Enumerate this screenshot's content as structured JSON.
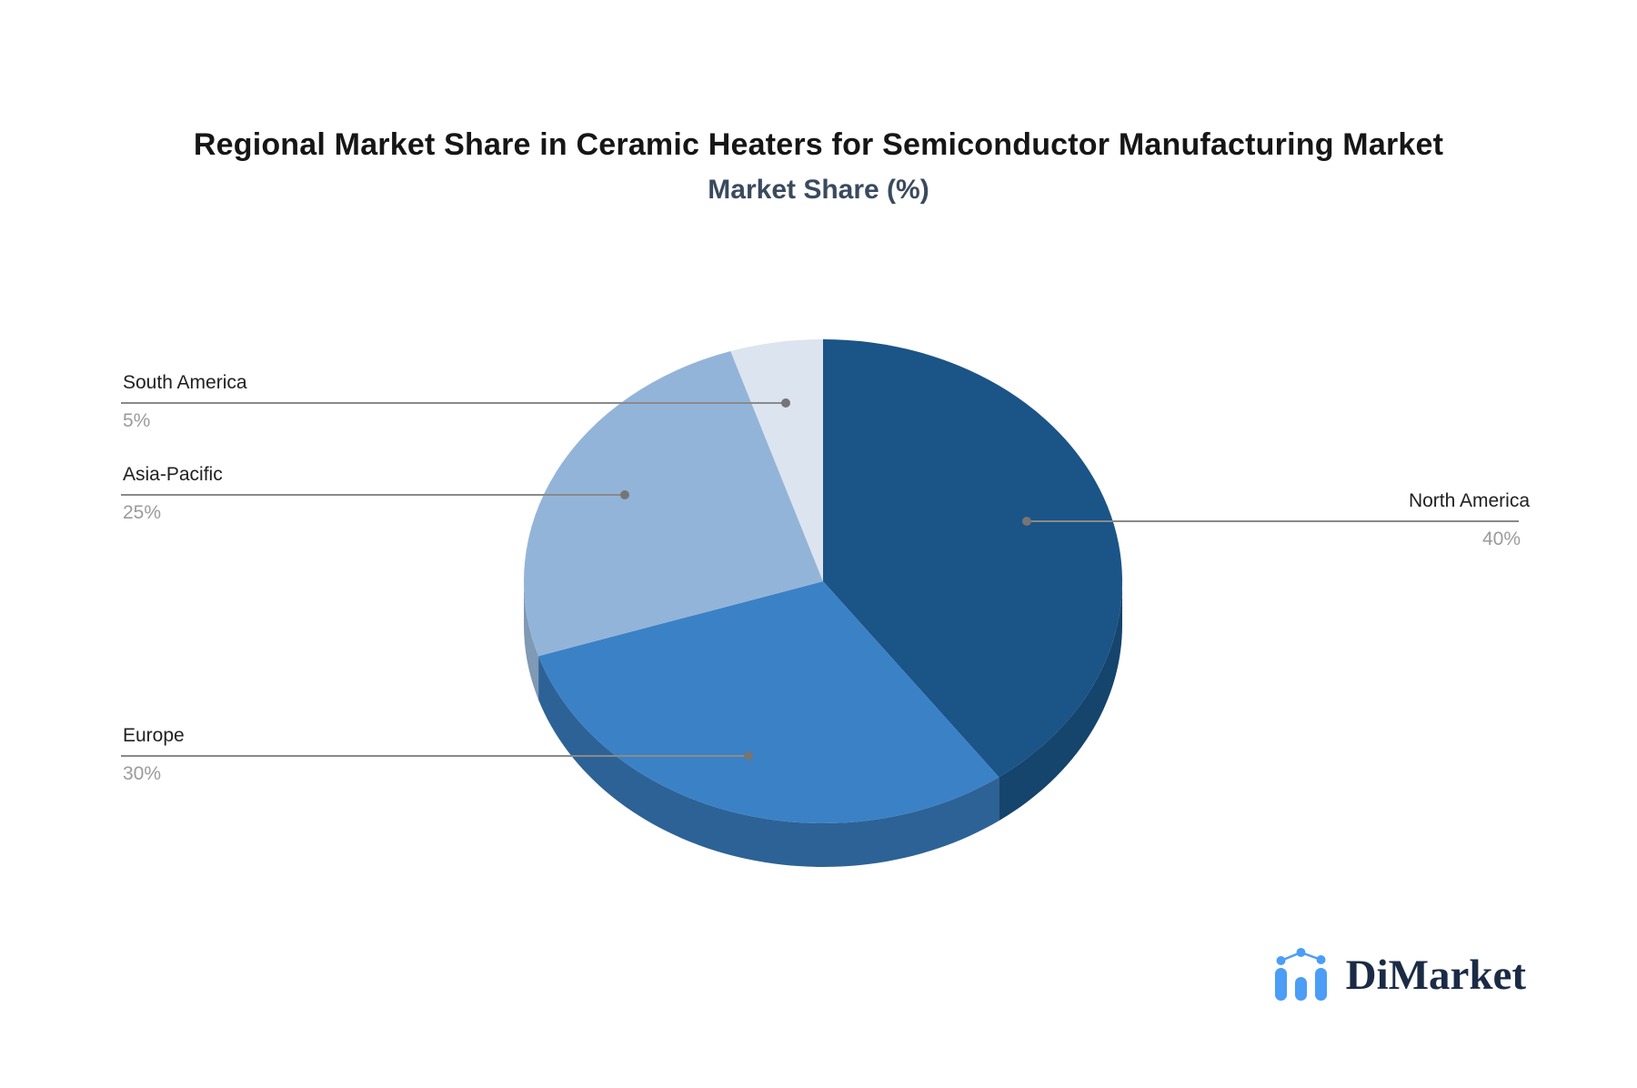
{
  "header": {
    "title": "Regional Market Share in Ceramic Heaters for Semiconductor Manufacturing Market",
    "subtitle": "Market Share (%)"
  },
  "logo": {
    "text": "DiMarket",
    "icon": "bar-line-chart-logo-icon",
    "bar_color": "#4B9DF6",
    "text_color": "#1B2B45"
  },
  "chart_data": {
    "type": "pie",
    "style": "3d",
    "title": "Regional Market Share in Ceramic Heaters for Semiconductor Manufacturing Market",
    "subtitle": "Market Share (%)",
    "unit": "%",
    "start_angle_deg": 90,
    "direction": "clockwise",
    "legend_position": "none",
    "slices": [
      {
        "label": "North America",
        "value": 40,
        "pct_label": "40%",
        "color": "#1B5487",
        "side_color": "#15446C",
        "label_side": "right"
      },
      {
        "label": "Europe",
        "value": 30,
        "pct_label": "30%",
        "color": "#3B81C6",
        "side_color": "#2D6296",
        "label_side": "left"
      },
      {
        "label": "Asia-Pacific",
        "value": 25,
        "pct_label": "25%",
        "color": "#93B4D9",
        "side_color": "#8099B4",
        "label_side": "left"
      },
      {
        "label": "South America",
        "value": 5,
        "pct_label": "5%",
        "color": "#DCE4EF",
        "side_color": "#B9C5D6",
        "label_side": "left"
      }
    ],
    "leader_line_color": "#8A8A8A",
    "leader_dot_color": "#757575",
    "label_color": "#212121",
    "pct_color": "#9B9B9B"
  }
}
